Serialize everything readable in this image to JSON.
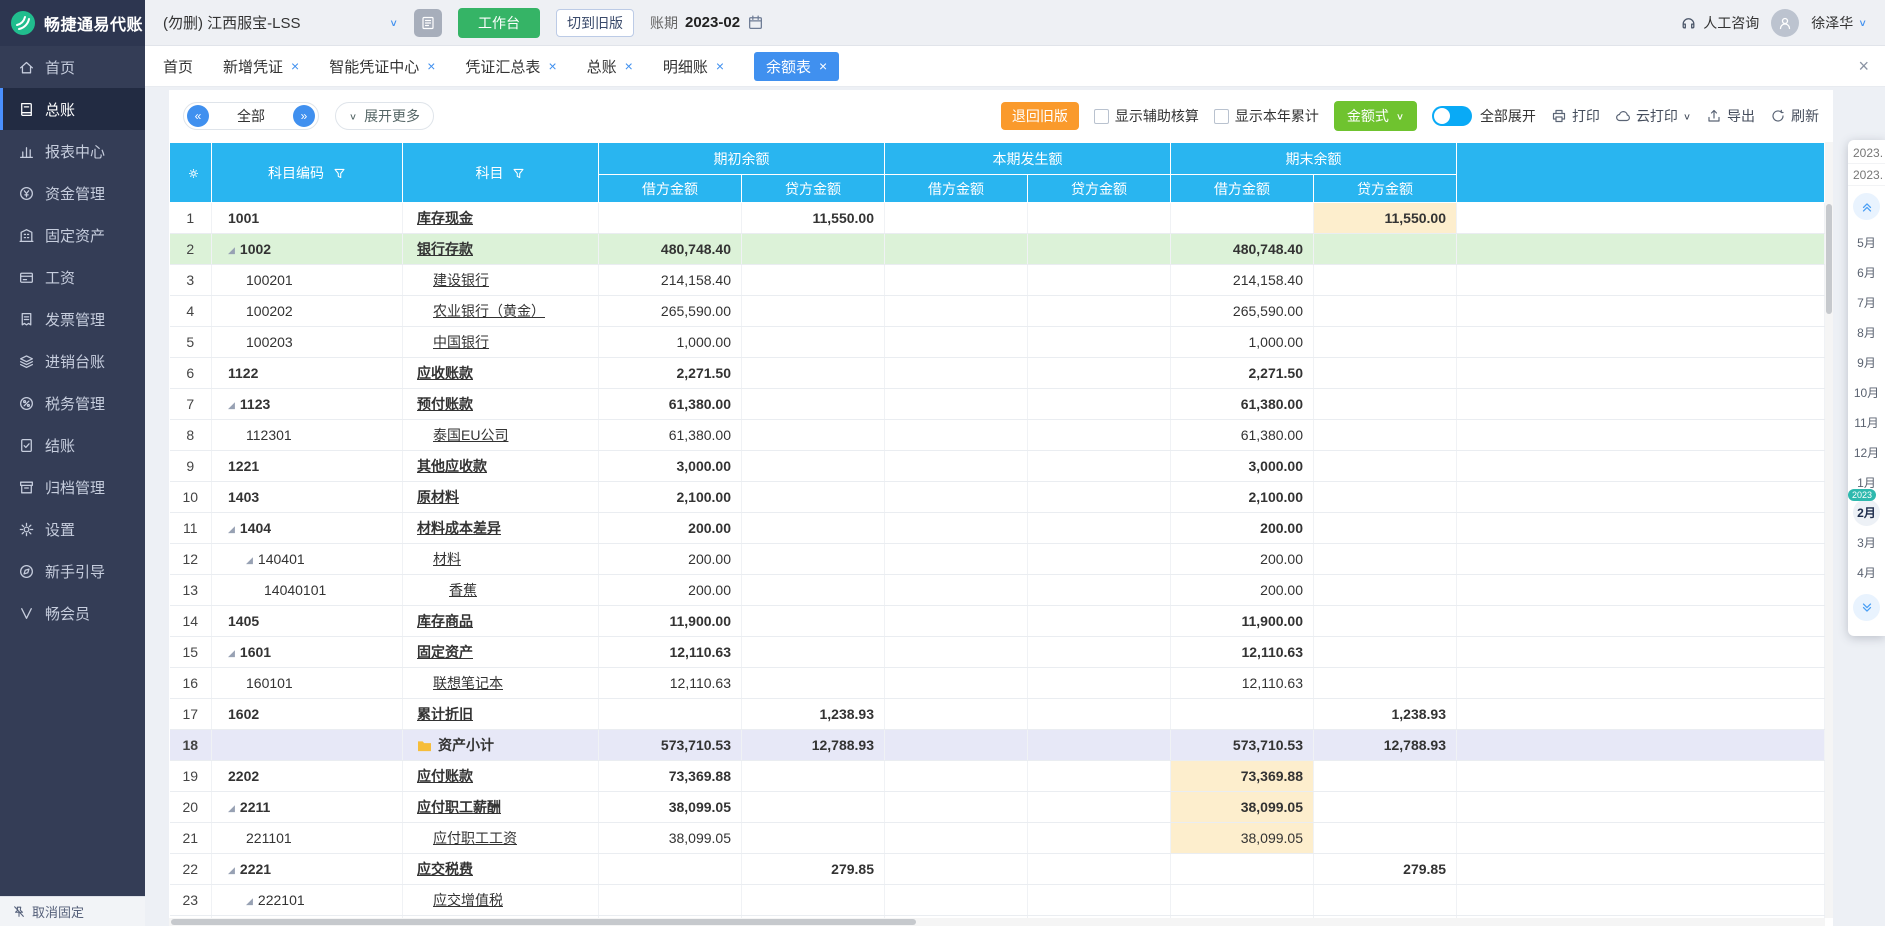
{
  "app": {
    "logo_text": "畅捷通易代账"
  },
  "icons": {
    "close": "×",
    "chevron_down": "∨",
    "double_left": "«",
    "double_right": "»",
    "triangle": "◢"
  },
  "topbar": {
    "company": "(勿删) 江西服宝-LSS",
    "workbench": "工作台",
    "switch_old": "切到旧版",
    "period_label": "账期",
    "period_value": "2023-02",
    "consult": "人工咨询",
    "username": "徐泽华"
  },
  "sidebar": {
    "unpin_label": "取消固定",
    "items": [
      {
        "key": "home",
        "label": "首页",
        "icon": "home-icon",
        "active": false
      },
      {
        "key": "general-ledger",
        "label": "总账",
        "icon": "ledger-icon",
        "active": true
      },
      {
        "key": "report-center",
        "label": "报表中心",
        "icon": "report-icon",
        "active": false
      },
      {
        "key": "fund",
        "label": "资金管理",
        "icon": "fund-icon",
        "active": false
      },
      {
        "key": "fixed-assets",
        "label": "固定资产",
        "icon": "asset-icon",
        "active": false
      },
      {
        "key": "salary",
        "label": "工资",
        "icon": "salary-icon",
        "active": false
      },
      {
        "key": "invoice",
        "label": "发票管理",
        "icon": "invoice-icon",
        "active": false
      },
      {
        "key": "inventory",
        "label": "进销台账",
        "icon": "inventory-icon",
        "active": false
      },
      {
        "key": "tax",
        "label": "税务管理",
        "icon": "tax-icon",
        "active": false
      },
      {
        "key": "closing",
        "label": "结账",
        "icon": "closing-icon",
        "active": false
      },
      {
        "key": "archive",
        "label": "归档管理",
        "icon": "archive-icon",
        "active": false
      },
      {
        "key": "settings",
        "label": "设置",
        "icon": "settings-icon",
        "active": false
      },
      {
        "key": "guide",
        "label": "新手引导",
        "icon": "guide-icon",
        "active": false
      },
      {
        "key": "member",
        "label": "畅会员",
        "icon": "member-icon",
        "active": false
      }
    ]
  },
  "tabs": [
    {
      "key": "home",
      "label": "首页",
      "closable": false,
      "active": false
    },
    {
      "key": "new-voucher",
      "label": "新增凭证",
      "closable": true,
      "active": false
    },
    {
      "key": "smart-voucher-center",
      "label": "智能凭证中心",
      "closable": true,
      "active": false
    },
    {
      "key": "voucher-summary",
      "label": "凭证汇总表",
      "closable": true,
      "active": false
    },
    {
      "key": "general-ledger",
      "label": "总账",
      "closable": true,
      "active": false
    },
    {
      "key": "detail-ledger",
      "label": "明细账",
      "closable": true,
      "active": false
    },
    {
      "key": "balance-sheet",
      "label": "余额表",
      "closable": true,
      "active": true
    }
  ],
  "toolbar": {
    "scope_value": "全部",
    "expand_more": "展开更多",
    "back_old": "退回旧版",
    "chk_aux": "显示辅助核算",
    "chk_ytd": "显示本年累计",
    "amount_style": "金额式",
    "expand_all": "全部展开",
    "print": "打印",
    "cloud_print": "云打印",
    "export": "导出",
    "refresh": "刷新"
  },
  "table": {
    "groups": [
      "期初余额",
      "本期发生额",
      "期末余额"
    ],
    "headers": {
      "code": "科目编码",
      "name": "科目",
      "debit": "借方金额",
      "credit": "贷方金额"
    },
    "rows": [
      {
        "n": "1",
        "code": "1001",
        "name": "库存现金",
        "lv": 1,
        "exp": false,
        "bold": true,
        "hlrow": "",
        "vals": [
          "",
          "11,550.00",
          "",
          "",
          "",
          "11,550.00"
        ],
        "hl": [
          5
        ]
      },
      {
        "n": "2",
        "code": "1002",
        "name": "银行存款",
        "lv": 1,
        "exp": true,
        "bold": true,
        "hlrow": "green",
        "vals": [
          "480,748.40",
          "",
          "",
          "",
          "480,748.40",
          ""
        ],
        "hl": []
      },
      {
        "n": "3",
        "code": "100201",
        "name": "建设银行",
        "lv": 2,
        "exp": false,
        "bold": false,
        "hlrow": "",
        "vals": [
          "214,158.40",
          "",
          "",
          "",
          "214,158.40",
          ""
        ],
        "hl": []
      },
      {
        "n": "4",
        "code": "100202",
        "name": "农业银行（黄金）",
        "lv": 2,
        "exp": false,
        "bold": false,
        "hlrow": "",
        "vals": [
          "265,590.00",
          "",
          "",
          "",
          "265,590.00",
          ""
        ],
        "hl": []
      },
      {
        "n": "5",
        "code": "100203",
        "name": "中国银行",
        "lv": 2,
        "exp": false,
        "bold": false,
        "hlrow": "",
        "vals": [
          "1,000.00",
          "",
          "",
          "",
          "1,000.00",
          ""
        ],
        "hl": []
      },
      {
        "n": "6",
        "code": "1122",
        "name": "应收账款",
        "lv": 1,
        "exp": false,
        "bold": true,
        "hlrow": "",
        "vals": [
          "2,271.50",
          "",
          "",
          "",
          "2,271.50",
          ""
        ],
        "hl": []
      },
      {
        "n": "7",
        "code": "1123",
        "name": "预付账款",
        "lv": 1,
        "exp": true,
        "bold": true,
        "hlrow": "",
        "vals": [
          "61,380.00",
          "",
          "",
          "",
          "61,380.00",
          ""
        ],
        "hl": []
      },
      {
        "n": "8",
        "code": "112301",
        "name": "泰国EU公司",
        "lv": 2,
        "exp": false,
        "bold": false,
        "hlrow": "",
        "vals": [
          "61,380.00",
          "",
          "",
          "",
          "61,380.00",
          ""
        ],
        "hl": []
      },
      {
        "n": "9",
        "code": "1221",
        "name": "其他应收款",
        "lv": 1,
        "exp": false,
        "bold": true,
        "hlrow": "",
        "vals": [
          "3,000.00",
          "",
          "",
          "",
          "3,000.00",
          ""
        ],
        "hl": []
      },
      {
        "n": "10",
        "code": "1403",
        "name": "原材料",
        "lv": 1,
        "exp": false,
        "bold": true,
        "hlrow": "",
        "vals": [
          "2,100.00",
          "",
          "",
          "",
          "2,100.00",
          ""
        ],
        "hl": []
      },
      {
        "n": "11",
        "code": "1404",
        "name": "材料成本差异",
        "lv": 1,
        "exp": true,
        "bold": true,
        "hlrow": "",
        "vals": [
          "200.00",
          "",
          "",
          "",
          "200.00",
          ""
        ],
        "hl": []
      },
      {
        "n": "12",
        "code": "140401",
        "name": "材料",
        "lv": 2,
        "exp": true,
        "bold": false,
        "hlrow": "",
        "vals": [
          "200.00",
          "",
          "",
          "",
          "200.00",
          ""
        ],
        "hl": []
      },
      {
        "n": "13",
        "code": "14040101",
        "name": "香蕉",
        "lv": 3,
        "exp": false,
        "bold": false,
        "hlrow": "",
        "vals": [
          "200.00",
          "",
          "",
          "",
          "200.00",
          ""
        ],
        "hl": []
      },
      {
        "n": "14",
        "code": "1405",
        "name": "库存商品",
        "lv": 1,
        "exp": false,
        "bold": true,
        "hlrow": "",
        "vals": [
          "11,900.00",
          "",
          "",
          "",
          "11,900.00",
          ""
        ],
        "hl": []
      },
      {
        "n": "15",
        "code": "1601",
        "name": "固定资产",
        "lv": 1,
        "exp": true,
        "bold": true,
        "hlrow": "",
        "vals": [
          "12,110.63",
          "",
          "",
          "",
          "12,110.63",
          ""
        ],
        "hl": []
      },
      {
        "n": "16",
        "code": "160101",
        "name": "联想笔记本",
        "lv": 2,
        "exp": false,
        "bold": false,
        "hlrow": "",
        "vals": [
          "12,110.63",
          "",
          "",
          "",
          "12,110.63",
          ""
        ],
        "hl": []
      },
      {
        "n": "17",
        "code": "1602",
        "name": "累计折旧",
        "lv": 1,
        "exp": false,
        "bold": true,
        "hlrow": "",
        "vals": [
          "",
          "1,238.93",
          "",
          "",
          "",
          "1,238.93"
        ],
        "hl": []
      },
      {
        "n": "18",
        "code": "",
        "name": "资产小计",
        "lv": 1,
        "exp": false,
        "bold": true,
        "hlrow": "lavender",
        "subtotal": true,
        "vals": [
          "573,710.53",
          "12,788.93",
          "",
          "",
          "573,710.53",
          "12,788.93"
        ],
        "hl": []
      },
      {
        "n": "19",
        "code": "2202",
        "name": "应付账款",
        "lv": 1,
        "exp": false,
        "bold": true,
        "hlrow": "",
        "vals": [
          "73,369.88",
          "",
          "",
          "",
          "73,369.88",
          ""
        ],
        "hl": [
          4
        ]
      },
      {
        "n": "20",
        "code": "2211",
        "name": "应付职工薪酬",
        "lv": 1,
        "exp": true,
        "bold": true,
        "hlrow": "",
        "vals": [
          "38,099.05",
          "",
          "",
          "",
          "38,099.05",
          ""
        ],
        "hl": [
          4
        ]
      },
      {
        "n": "21",
        "code": "221101",
        "name": "应付职工工资",
        "lv": 2,
        "exp": false,
        "bold": false,
        "hlrow": "",
        "vals": [
          "38,099.05",
          "",
          "",
          "",
          "38,099.05",
          ""
        ],
        "hl": [
          4
        ]
      },
      {
        "n": "22",
        "code": "2221",
        "name": "应交税费",
        "lv": 1,
        "exp": true,
        "bold": true,
        "hlrow": "",
        "vals": [
          "",
          "279.85",
          "",
          "",
          "",
          "279.85"
        ],
        "hl": []
      },
      {
        "n": "23",
        "code": "222101",
        "name": "应交增值税",
        "lv": 2,
        "exp": true,
        "bold": false,
        "hlrow": "",
        "vals": [
          "",
          "",
          "",
          "",
          "",
          ""
        ],
        "hl": []
      },
      {
        "n": "24",
        "code": "",
        "name": "",
        "lv": 3,
        "exp": false,
        "bold": false,
        "hlrow": "",
        "vals": [
          "",
          "",
          "",
          "",
          "",
          ""
        ],
        "hl": []
      }
    ]
  },
  "right_panel": {
    "clipped_years": [
      "2023.",
      "2023."
    ],
    "months": [
      "5月",
      "6月",
      "7月",
      "8月",
      "9月",
      "10月",
      "11月",
      "12月",
      "1月",
      "2月",
      "3月",
      "4月"
    ],
    "active_month": "2月",
    "year_badge": "2023"
  }
}
